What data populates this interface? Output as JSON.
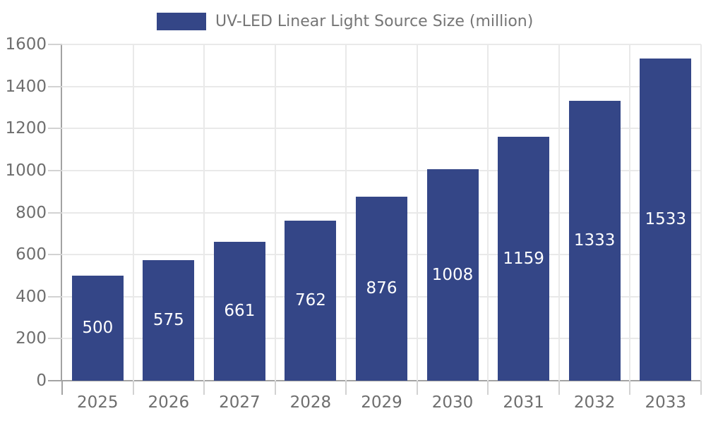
{
  "chart_data": {
    "type": "bar",
    "title": "",
    "legend": "UV-LED Linear Light Source Size (million)",
    "categories": [
      "2025",
      "2026",
      "2027",
      "2028",
      "2029",
      "2030",
      "2031",
      "2032",
      "2033"
    ],
    "values": [
      500,
      575,
      661,
      762,
      876,
      1008,
      1159,
      1333,
      1533
    ],
    "value_labels": [
      "500",
      "575",
      "661",
      "762",
      "876",
      "1008",
      "1159",
      "1333",
      "1533"
    ],
    "xlabel": "",
    "ylabel": "",
    "ylim": [
      0,
      1600
    ],
    "y_ticks": [
      0,
      200,
      400,
      600,
      800,
      1000,
      1200,
      1400,
      1600
    ],
    "grid": "on",
    "legend_position": "top-center",
    "bar_value_label_position": "center-of-bar",
    "colors": {
      "bar": "#344687",
      "legend_swatch": "#344687",
      "gridline": "#e9e9e9",
      "tick": "#d2d2d2",
      "axis_line": "#a3a3a3",
      "axis_label_text": "#6e6e6e",
      "legend_text": "#757575",
      "bar_value_text": "#ffffff",
      "background": "#ffffff"
    }
  }
}
